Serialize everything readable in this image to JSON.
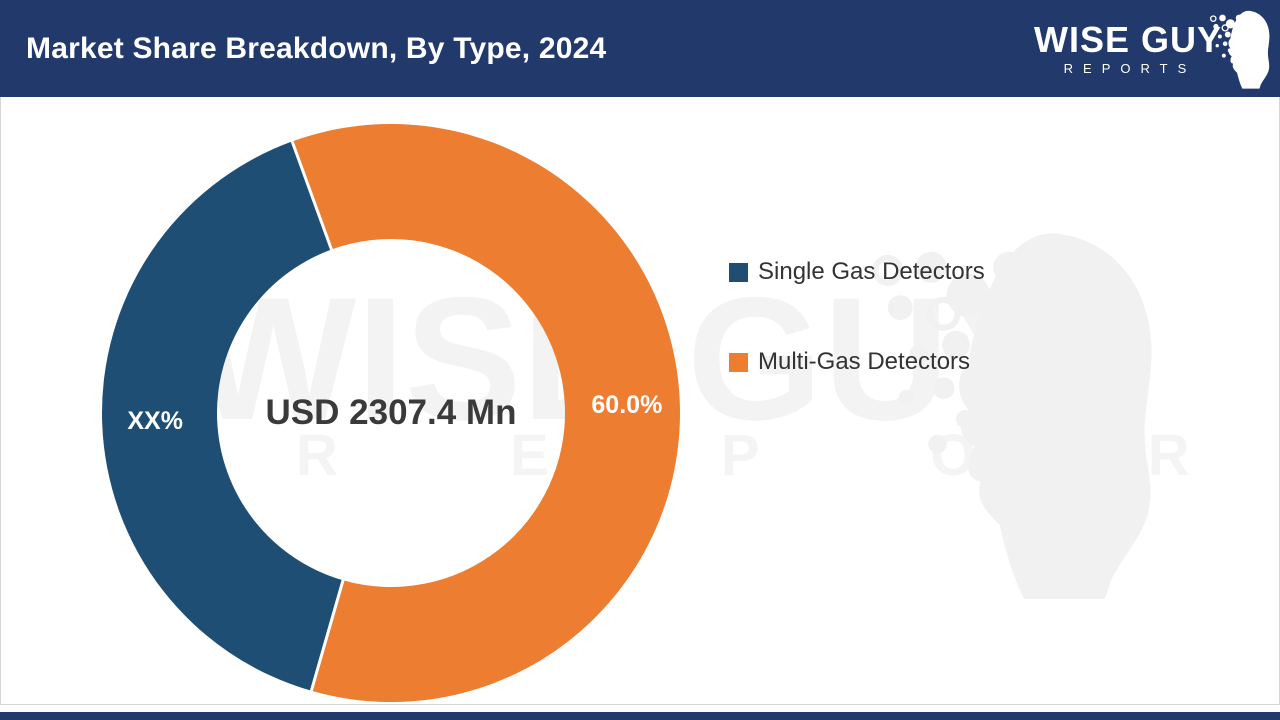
{
  "header": {
    "title": "Market Share Breakdown, By Type, 2024",
    "logo": {
      "line1": "WISE GUY",
      "line2": "REPORTS"
    }
  },
  "watermark": {
    "big_text": "WISE GUY",
    "reports_text": "R E P O R T S"
  },
  "chart_data": {
    "type": "pie",
    "subtype": "donut",
    "title": "Market Share Breakdown, By Type, 2024",
    "center_label": "USD 2307.4 Mn",
    "start_angle_deg": 196,
    "direction": "clockwise",
    "legend_position": "right",
    "segments": [
      {
        "label": "Single Gas Detectors",
        "value_pct": 40,
        "display_label": "XX%",
        "color": "#1f4e74"
      },
      {
        "label": "Multi-Gas Detectors",
        "value_pct": 60,
        "display_label": "60.0%",
        "color": "#ed7d31"
      }
    ],
    "colors": {
      "header_navy": "#21396b",
      "segment_label_text": "#ffffff",
      "center_text": "#3a3a3a",
      "legend_text": "#333333",
      "watermark": "#f3f3f3"
    }
  }
}
